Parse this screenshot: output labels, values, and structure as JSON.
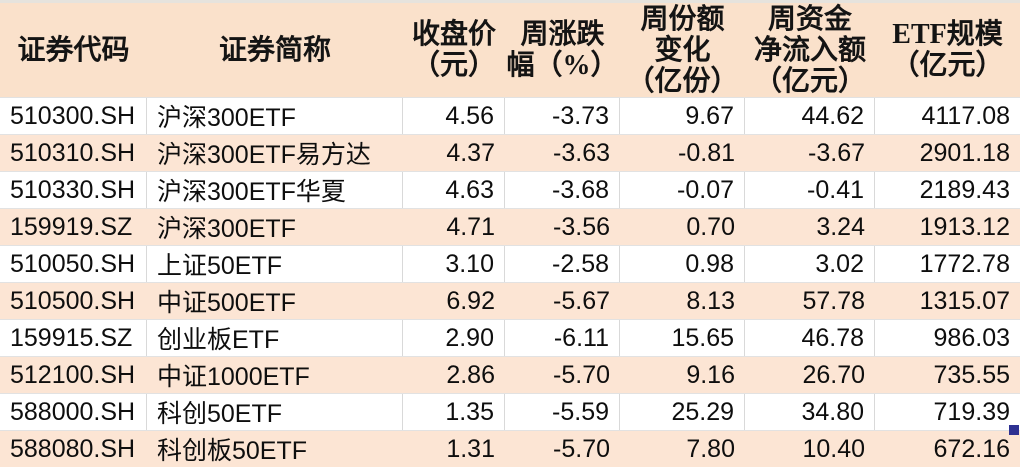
{
  "colors": {
    "header_bg": "#fae1cb",
    "row_alt_bg": "#fce5d4",
    "row_bg": "#ffffff",
    "grid_line": "#d9d9d9",
    "text": "#0e0e0e",
    "selection_handle": "#2e3192"
  },
  "table": {
    "columns": [
      {
        "id": "code",
        "lines": [
          "证券代码"
        ]
      },
      {
        "id": "name",
        "lines": [
          "证券简称"
        ]
      },
      {
        "id": "close",
        "lines": [
          "收盘价",
          "（元）"
        ]
      },
      {
        "id": "week_change",
        "lines": [
          "周涨跌",
          "幅（%）"
        ]
      },
      {
        "id": "share_change",
        "lines": [
          "周份额",
          "变化",
          "（亿份）"
        ]
      },
      {
        "id": "net_inflow",
        "lines": [
          "周资金",
          "净流入额",
          "（亿元）"
        ]
      },
      {
        "id": "scale",
        "lines": [
          "ETF规模",
          "（亿元）"
        ]
      }
    ],
    "rows": [
      {
        "code": "510300.SH",
        "name": "沪深300ETF",
        "close": "4.56",
        "week_change": "-3.73",
        "share_change": "9.67",
        "net_inflow": "44.62",
        "scale": "4117.08"
      },
      {
        "code": "510310.SH",
        "name": "沪深300ETF易方达",
        "close": "4.37",
        "week_change": "-3.63",
        "share_change": "-0.81",
        "net_inflow": "-3.67",
        "scale": "2901.18"
      },
      {
        "code": "510330.SH",
        "name": "沪深300ETF华夏",
        "close": "4.63",
        "week_change": "-3.68",
        "share_change": "-0.07",
        "net_inflow": "-0.41",
        "scale": "2189.43"
      },
      {
        "code": "159919.SZ",
        "name": "沪深300ETF",
        "close": "4.71",
        "week_change": "-3.56",
        "share_change": "0.70",
        "net_inflow": "3.24",
        "scale": "1913.12"
      },
      {
        "code": "510050.SH",
        "name": "上证50ETF",
        "close": "3.10",
        "week_change": "-2.58",
        "share_change": "0.98",
        "net_inflow": "3.02",
        "scale": "1772.78"
      },
      {
        "code": "510500.SH",
        "name": "中证500ETF",
        "close": "6.92",
        "week_change": "-5.67",
        "share_change": "8.13",
        "net_inflow": "57.78",
        "scale": "1315.07"
      },
      {
        "code": "159915.SZ",
        "name": "创业板ETF",
        "close": "2.90",
        "week_change": "-6.11",
        "share_change": "15.65",
        "net_inflow": "46.78",
        "scale": "986.03"
      },
      {
        "code": "512100.SH",
        "name": "中证1000ETF",
        "close": "2.86",
        "week_change": "-5.70",
        "share_change": "9.16",
        "net_inflow": "26.70",
        "scale": "735.55"
      },
      {
        "code": "588000.SH",
        "name": "科创50ETF",
        "close": "1.35",
        "week_change": "-5.59",
        "share_change": "25.29",
        "net_inflow": "34.80",
        "scale": "719.39"
      },
      {
        "code": "588080.SH",
        "name": "科创板50ETF",
        "close": "1.31",
        "week_change": "-5.70",
        "share_change": "7.80",
        "net_inflow": "10.40",
        "scale": "672.16"
      }
    ]
  }
}
